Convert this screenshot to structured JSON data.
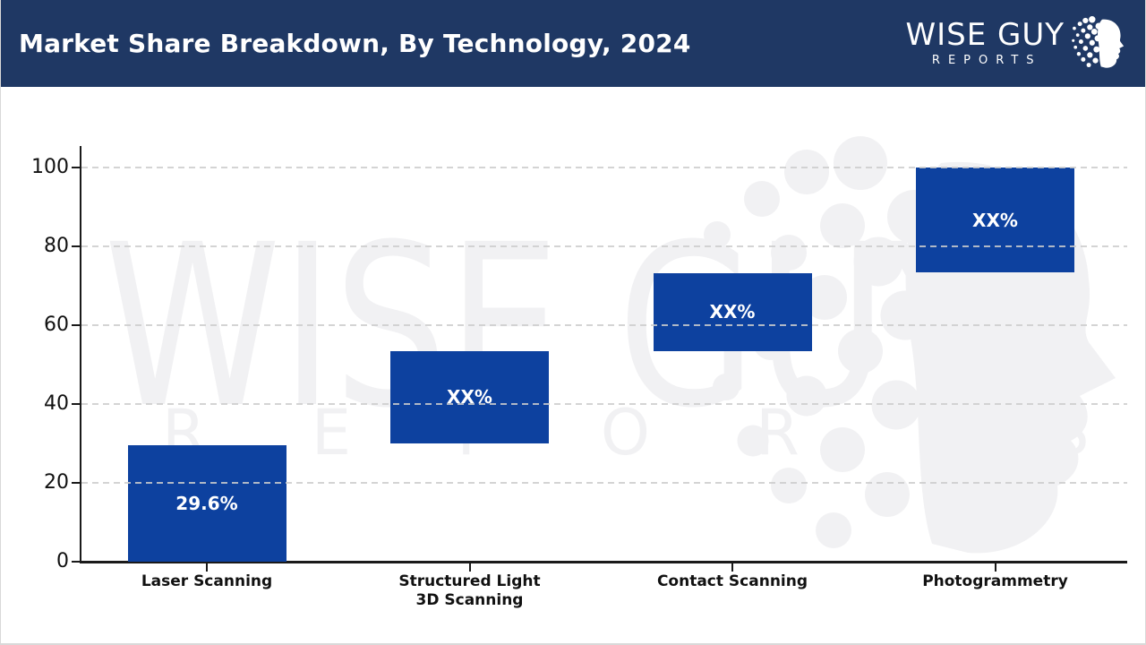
{
  "header": {
    "title": "Market Share Breakdown, By Technology, 2024",
    "logo": {
      "line1": "WISE GUY",
      "line2": "REPORTS"
    }
  },
  "watermark": {
    "line1": "WISE GUY",
    "line2": "REPORTS"
  },
  "colors": {
    "header_bg": "#1f3864",
    "bar": "#0d419f",
    "bar_label": "#ffffff",
    "watermark": "#f1f1f3",
    "axis": "#1a1a1a",
    "gridline": "#d9d9d9"
  },
  "chart_data": {
    "type": "bar",
    "variant": "waterfall",
    "title": "Market Share Breakdown, By Technology, 2024",
    "xlabel": "",
    "ylabel": "",
    "ylim": [
      0,
      100
    ],
    "yticks": [
      0,
      20,
      40,
      60,
      80,
      100
    ],
    "grid": true,
    "grid_style": "dashed",
    "legend": "none",
    "bar_color": "#0d419f",
    "categories": [
      "Laser Scanning",
      "Structured Light\n3D Scanning",
      "Contact Scanning",
      "Photogrammetry"
    ],
    "bars": [
      {
        "category": "Laser Scanning",
        "start": 0,
        "end": 29.6,
        "label": "29.6%"
      },
      {
        "category": "Structured Light 3D Scanning",
        "start": 30,
        "end": 53.5,
        "label": "XX%"
      },
      {
        "category": "Contact Scanning",
        "start": 53.4,
        "end": 73.2,
        "label": "XX%"
      },
      {
        "category": "Photogrammetry",
        "start": 73.3,
        "end": 100,
        "label": "XX%"
      }
    ]
  }
}
